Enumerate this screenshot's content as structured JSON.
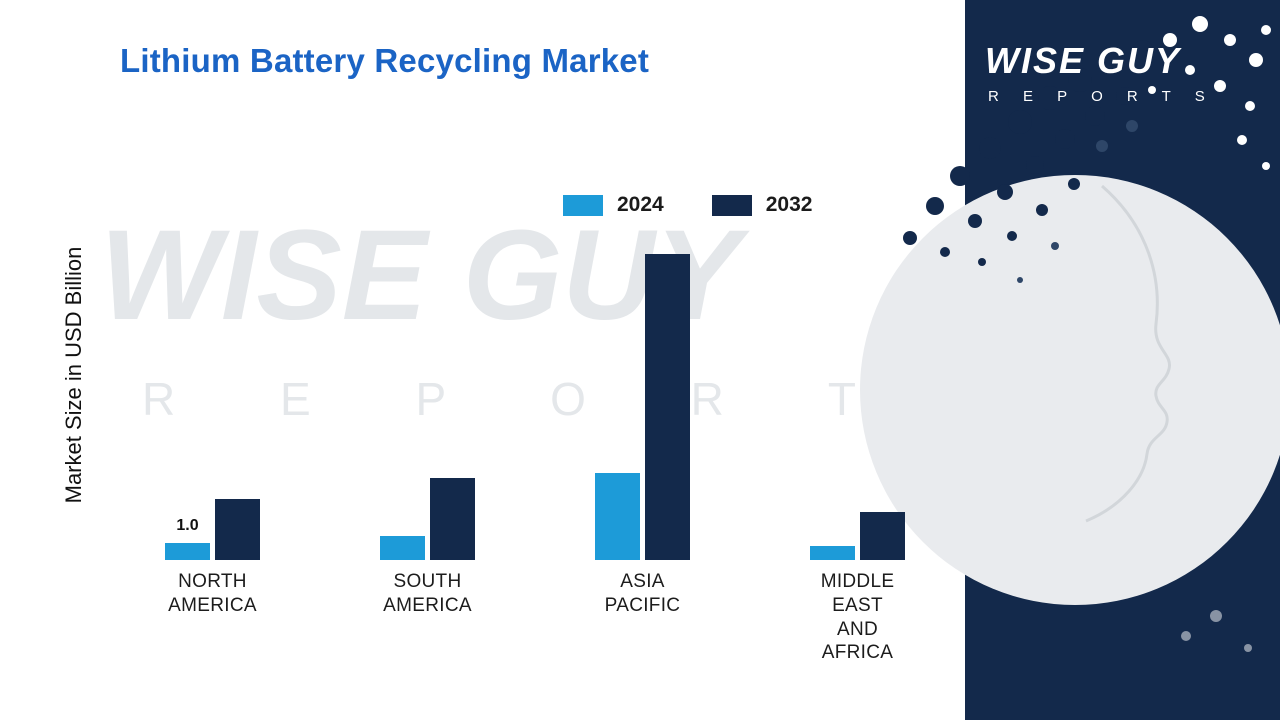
{
  "title": "Lithium Battery Recycling Market",
  "ylabel": "Market Size in USD Billion",
  "watermark": {
    "line1": "WISE GUY",
    "line2": "R E P O R T S"
  },
  "brand": {
    "name": "WISE GUY",
    "sub": "R E P O R T S",
    "panel_color": "#13294b"
  },
  "colors": {
    "title_blue": "#1b64c5",
    "series_2024": "#1d9bd8",
    "series_2032": "#13294b",
    "watermark_gray": "#e4e7ea",
    "head_gray": "#e9ebee"
  },
  "chart_data": {
    "type": "bar",
    "title": "Lithium Battery Recycling Market",
    "ylabel": "Market Size in USD Billion",
    "categories": [
      "NORTH AMERICA",
      "SOUTH AMERICA",
      "ASIA PACIFIC",
      "MIDDLE EAST AND AFRICA"
    ],
    "category_lines": [
      [
        "NORTH",
        "AMERICA"
      ],
      [
        "SOUTH",
        "AMERICA"
      ],
      [
        "ASIA",
        "PACIFIC"
      ],
      [
        "MIDDLE",
        "EAST",
        "AND",
        "AFRICA"
      ]
    ],
    "series": [
      {
        "name": "2024",
        "color": "#1d9bd8",
        "values": [
          1.0,
          1.4,
          5.1,
          0.8
        ]
      },
      {
        "name": "2032",
        "color": "#13294b",
        "values": [
          3.6,
          4.8,
          18.0,
          2.8
        ]
      }
    ],
    "value_labels": [
      {
        "series_index": 0,
        "category_index": 0,
        "text": "1.0"
      }
    ],
    "ylim": [
      0,
      20
    ],
    "grid": false,
    "legend_position": "top-right",
    "units": "USD Billion"
  }
}
